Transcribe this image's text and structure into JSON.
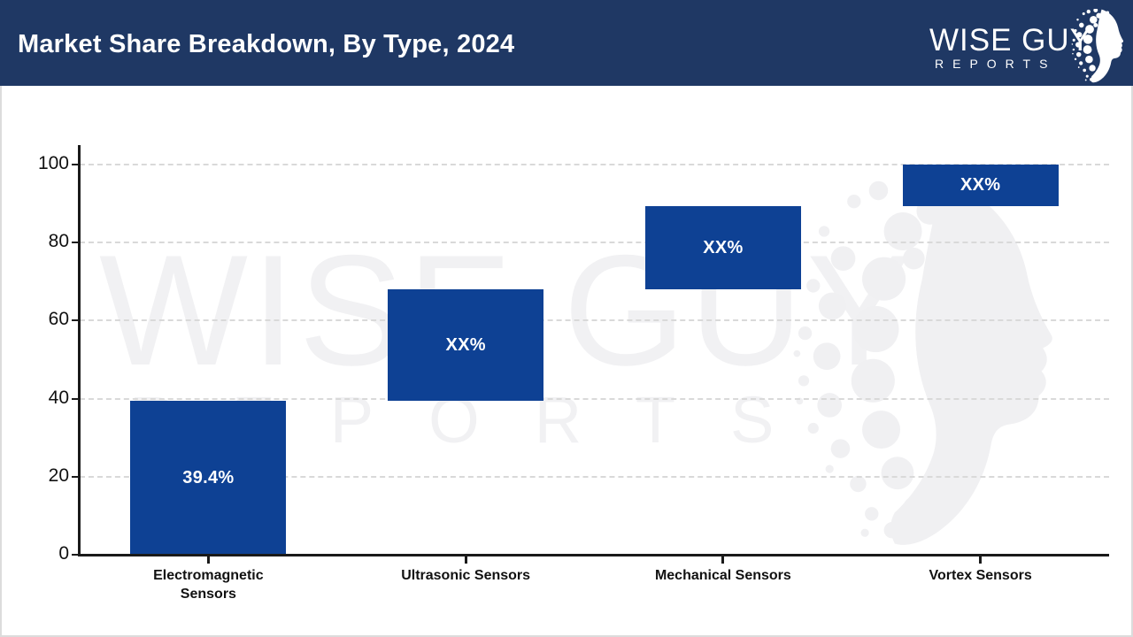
{
  "page": {
    "background_color": "#ffffff",
    "border_color": "#dcdcdc"
  },
  "header": {
    "title": "Market Share Breakdown, By Type, 2024",
    "background_color": "#1f3864",
    "text_color": "#ffffff",
    "brand": {
      "name": "WISE GUY",
      "tagline": "REPORTS",
      "head_icon": "dotted-head-profile"
    }
  },
  "watermark": {
    "line1": "WISE GUY",
    "line2": "REPORTS",
    "head_icon": "dotted-head-profile",
    "color": "#f1f1f3"
  },
  "chart_data": {
    "type": "bar",
    "subtype": "waterfall",
    "title": "Market Share Breakdown, By Type, 2024",
    "categories": [
      "Electromagnetic Sensors",
      "Ultrasonic Sensors",
      "Mechanical Sensors",
      "Vortex Sensors"
    ],
    "tick_label_lines": [
      [
        "Electromagnetic",
        "Sensors"
      ],
      [
        "Ultrasonic Sensors"
      ],
      [
        "Mechanical Sensors"
      ],
      [
        "Vortex Sensors"
      ]
    ],
    "segments": [
      {
        "category": "Electromagnetic Sensors",
        "start": 0,
        "end": 39.4,
        "value": 39.4,
        "label": "39.4%"
      },
      {
        "category": "Ultrasonic Sensors",
        "start": 39.4,
        "end": 68.0,
        "value": 28.6,
        "label": "XX%"
      },
      {
        "category": "Mechanical Sensors",
        "start": 68.0,
        "end": 89.3,
        "value": 21.3,
        "label": "XX%"
      },
      {
        "category": "Vortex Sensors",
        "start": 89.3,
        "end": 100.0,
        "value": 10.7,
        "label": "XX%"
      }
    ],
    "xlabel": "",
    "ylabel": "",
    "yticks": [
      0,
      20,
      40,
      60,
      80,
      100
    ],
    "ylim": [
      0,
      105
    ],
    "grid": {
      "horizontal": true,
      "style": "dashed",
      "color": "#d9d9d9"
    },
    "legend": null,
    "bar_color": "#0e4194",
    "bar_label_color": "#ffffff",
    "axis_color": "#1a1a1a",
    "tick_label_color": "#111111"
  }
}
